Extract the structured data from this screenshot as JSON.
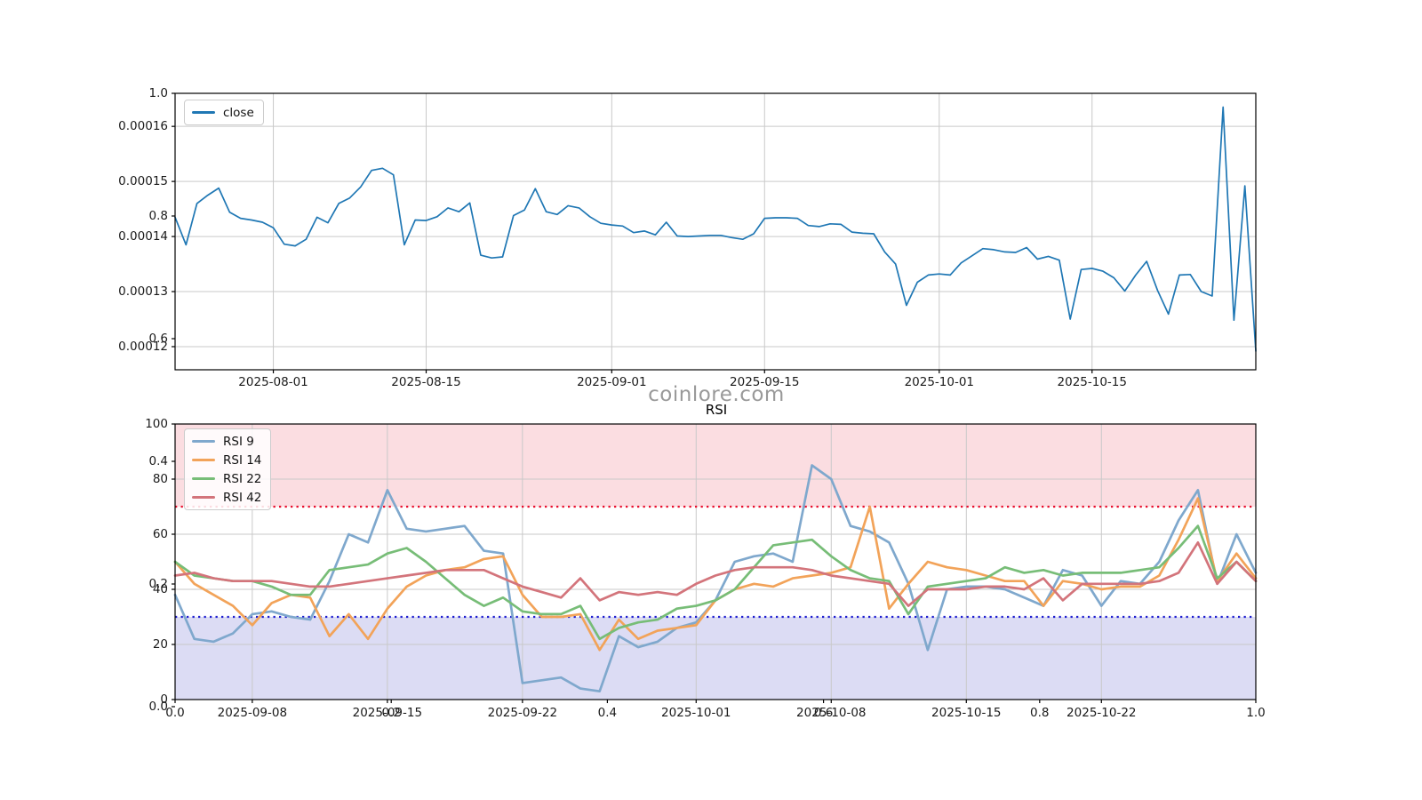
{
  "watermark": {
    "text": "coinlore.com"
  },
  "style": {
    "background": "#ffffff",
    "grid": "#c9c9c9",
    "axis": "#000000",
    "tick_label_color": "#1a1a1a",
    "watermark_color": "#999999"
  },
  "overlay_axis": {
    "xticks": [
      "0.0",
      "0.2",
      "0.4",
      "0.6",
      "0.8",
      "1.0"
    ],
    "yticks": [
      "1.0",
      "0.8",
      "0.6",
      "0.4",
      "0.2",
      "0.0"
    ]
  },
  "chart_data": [
    {
      "type": "line",
      "title": "",
      "xlabel": "",
      "ylabel": "",
      "legend_position": "upper left",
      "grid": true,
      "ylim": [
        0.0001158,
        0.000166
      ],
      "ytick_values": [
        0.00012,
        0.00013,
        0.00014,
        0.00015,
        0.00016
      ],
      "ytick_labels": [
        "0.00012",
        "0.00013",
        "0.00014",
        "0.00015",
        "0.00016"
      ],
      "xtick_labels": [
        "2025-08-01",
        "2025-08-15",
        "2025-09-01",
        "2025-09-15",
        "2025-10-01",
        "2025-10-15"
      ],
      "x": [
        "2025-07-23",
        "2025-07-24",
        "2025-07-25",
        "2025-07-26",
        "2025-07-27",
        "2025-07-28",
        "2025-07-29",
        "2025-07-30",
        "2025-07-31",
        "2025-08-01",
        "2025-08-02",
        "2025-08-03",
        "2025-08-04",
        "2025-08-05",
        "2025-08-06",
        "2025-08-07",
        "2025-08-08",
        "2025-08-09",
        "2025-08-10",
        "2025-08-11",
        "2025-08-12",
        "2025-08-13",
        "2025-08-14",
        "2025-08-15",
        "2025-08-16",
        "2025-08-17",
        "2025-08-18",
        "2025-08-19",
        "2025-08-20",
        "2025-08-21",
        "2025-08-22",
        "2025-08-23",
        "2025-08-24",
        "2025-08-25",
        "2025-08-26",
        "2025-08-27",
        "2025-08-28",
        "2025-08-29",
        "2025-08-30",
        "2025-08-31",
        "2025-09-01",
        "2025-09-02",
        "2025-09-03",
        "2025-09-04",
        "2025-09-05",
        "2025-09-06",
        "2025-09-07",
        "2025-09-08",
        "2025-09-09",
        "2025-09-10",
        "2025-09-11",
        "2025-09-12",
        "2025-09-13",
        "2025-09-14",
        "2025-09-15",
        "2025-09-16",
        "2025-09-17",
        "2025-09-18",
        "2025-09-19",
        "2025-09-20",
        "2025-09-21",
        "2025-09-22",
        "2025-09-23",
        "2025-09-24",
        "2025-09-25",
        "2025-09-26",
        "2025-09-27",
        "2025-09-28",
        "2025-09-29",
        "2025-09-30",
        "2025-10-01",
        "2025-10-02",
        "2025-10-03",
        "2025-10-04",
        "2025-10-05",
        "2025-10-06",
        "2025-10-07",
        "2025-10-08",
        "2025-10-09",
        "2025-10-10",
        "2025-10-11",
        "2025-10-12",
        "2025-10-13",
        "2025-10-14",
        "2025-10-15",
        "2025-10-16",
        "2025-10-17",
        "2025-10-18",
        "2025-10-19",
        "2025-10-20",
        "2025-10-21",
        "2025-10-22",
        "2025-10-23",
        "2025-10-24",
        "2025-10-25",
        "2025-10-26",
        "2025-10-27",
        "2025-10-28",
        "2025-10-29",
        "2025-10-30"
      ],
      "series": [
        {
          "name": "close",
          "color": "#1f77b4",
          "width": 1.7,
          "values": [
            0.0001435,
            0.0001385,
            0.000146,
            0.0001475,
            0.0001488,
            0.0001444,
            0.0001433,
            0.000143,
            0.0001426,
            0.0001416,
            0.0001386,
            0.0001383,
            0.0001395,
            0.0001435,
            0.0001425,
            0.000146,
            0.000147,
            0.000149,
            0.000152,
            0.0001524,
            0.0001512,
            0.0001385,
            0.000143,
            0.0001429,
            0.0001436,
            0.0001452,
            0.0001445,
            0.0001461,
            0.0001366,
            0.0001361,
            0.0001363,
            0.0001438,
            0.0001448,
            0.0001487,
            0.0001445,
            0.000144,
            0.0001456,
            0.0001452,
            0.0001436,
            0.0001424,
            0.0001421,
            0.0001419,
            0.0001407,
            0.000141,
            0.0001403,
            0.0001426,
            0.0001401,
            0.00014,
            0.0001401,
            0.0001402,
            0.0001402,
            0.0001398,
            0.0001395,
            0.0001405,
            0.0001433,
            0.0001434,
            0.0001434,
            0.0001433,
            0.000142,
            0.0001418,
            0.0001423,
            0.0001422,
            0.0001408,
            0.0001406,
            0.0001405,
            0.0001372,
            0.000135,
            0.0001275,
            0.0001317,
            0.000133,
            0.0001332,
            0.000133,
            0.0001352,
            0.0001365,
            0.0001378,
            0.0001376,
            0.0001372,
            0.0001371,
            0.000138,
            0.0001359,
            0.0001364,
            0.0001357,
            0.000125,
            0.000134,
            0.0001342,
            0.0001337,
            0.0001325,
            0.0001301,
            0.000133,
            0.0001355,
            0.0001302,
            0.0001259,
            0.000133,
            0.0001331,
            0.00013,
            0.0001292,
            0.0001635,
            0.0001248,
            0.0001492,
            0.0001192
          ]
        }
      ]
    },
    {
      "type": "line",
      "title": "RSI",
      "xlabel": "",
      "ylabel": "",
      "legend_position": "upper left",
      "grid": true,
      "ylim": [
        0,
        100
      ],
      "ytick_values": [
        0,
        20,
        40,
        60,
        80,
        100
      ],
      "ytick_labels": [
        "0",
        "20",
        "40",
        "60",
        "80",
        "100"
      ],
      "xtick_labels": [
        "2025-09-08",
        "2025-09-15",
        "2025-09-22",
        "2025-10-01",
        "2025-10-08",
        "2025-10-15",
        "2025-10-22"
      ],
      "bands": [
        {
          "name": "overbought",
          "from": 70,
          "to": 100,
          "color": "#fbdde1"
        },
        {
          "name": "oversold",
          "from": 0,
          "to": 30,
          "color": "#dcdcf4"
        }
      ],
      "hlines": [
        {
          "name": "overbought-threshold",
          "y": 70,
          "color": "#e8102e",
          "style": "dotted"
        },
        {
          "name": "oversold-threshold",
          "y": 30,
          "color": "#1c1ccf",
          "style": "dotted"
        }
      ],
      "x": [
        "2025-09-04",
        "2025-09-05",
        "2025-09-06",
        "2025-09-07",
        "2025-09-08",
        "2025-09-09",
        "2025-09-10",
        "2025-09-11",
        "2025-09-12",
        "2025-09-13",
        "2025-09-14",
        "2025-09-15",
        "2025-09-16",
        "2025-09-17",
        "2025-09-18",
        "2025-09-19",
        "2025-09-20",
        "2025-09-21",
        "2025-09-22",
        "2025-09-23",
        "2025-09-24",
        "2025-09-25",
        "2025-09-26",
        "2025-09-27",
        "2025-09-28",
        "2025-09-29",
        "2025-09-30",
        "2025-10-01",
        "2025-10-02",
        "2025-10-03",
        "2025-10-04",
        "2025-10-05",
        "2025-10-06",
        "2025-10-07",
        "2025-10-08",
        "2025-10-09",
        "2025-10-10",
        "2025-10-11",
        "2025-10-12",
        "2025-10-13",
        "2025-10-14",
        "2025-10-15",
        "2025-10-16",
        "2025-10-17",
        "2025-10-18",
        "2025-10-19",
        "2025-10-20",
        "2025-10-21",
        "2025-10-22",
        "2025-10-23",
        "2025-10-24",
        "2025-10-25",
        "2025-10-26",
        "2025-10-27",
        "2025-10-28",
        "2025-10-29",
        "2025-10-30"
      ],
      "series": [
        {
          "name": "RSI 9",
          "color": "#7fa8cd",
          "width": 2.7,
          "values": [
            38,
            22,
            21,
            24,
            31,
            32,
            30,
            29,
            43,
            60,
            57,
            76,
            62,
            61,
            62,
            63,
            54,
            53,
            6,
            7,
            8,
            4,
            3,
            23,
            19,
            21,
            26,
            28,
            36,
            50,
            52,
            53,
            50,
            85,
            80,
            63,
            61,
            57,
            42,
            18,
            40,
            41,
            41,
            40,
            37,
            34,
            47,
            45,
            34,
            43,
            42,
            50,
            65,
            76,
            42,
            60,
            46
          ]
        },
        {
          "name": "RSI 14",
          "color": "#f2a359",
          "width": 2.7,
          "values": [
            50,
            42,
            38,
            34,
            27,
            35,
            38,
            37,
            23,
            31,
            22,
            33,
            41,
            45,
            47,
            48,
            51,
            52,
            38,
            30,
            30,
            31,
            18,
            29,
            22,
            25,
            26,
            27,
            36,
            40,
            42,
            41,
            44,
            45,
            46,
            48,
            70,
            33,
            42,
            50,
            48,
            47,
            45,
            43,
            43,
            34,
            43,
            42,
            40,
            41,
            41,
            45,
            58,
            73,
            43,
            53,
            44
          ]
        },
        {
          "name": "RSI 22",
          "color": "#77bd77",
          "width": 2.7,
          "values": [
            50,
            45,
            44,
            43,
            43,
            41,
            38,
            38,
            47,
            48,
            49,
            53,
            55,
            50,
            44,
            38,
            34,
            37,
            32,
            31,
            31,
            34,
            22,
            26,
            28,
            29,
            33,
            34,
            36,
            40,
            48,
            56,
            57,
            58,
            52,
            47,
            44,
            43,
            31,
            41,
            42,
            43,
            44,
            48,
            46,
            47,
            45,
            46,
            46,
            46,
            47,
            48,
            55,
            63,
            44,
            50,
            43
          ]
        },
        {
          "name": "RSI 42",
          "color": "#d3747b",
          "width": 2.7,
          "values": [
            45,
            46,
            44,
            43,
            43,
            43,
            42,
            41,
            41,
            42,
            43,
            44,
            45,
            46,
            47,
            47,
            47,
            44,
            41,
            39,
            37,
            44,
            36,
            39,
            38,
            39,
            38,
            42,
            45,
            47,
            48,
            48,
            48,
            47,
            45,
            44,
            43,
            42,
            34,
            40,
            40,
            40,
            41,
            41,
            40,
            44,
            36,
            42,
            42,
            42,
            42,
            43,
            46,
            57,
            42,
            50,
            43
          ]
        }
      ]
    }
  ]
}
